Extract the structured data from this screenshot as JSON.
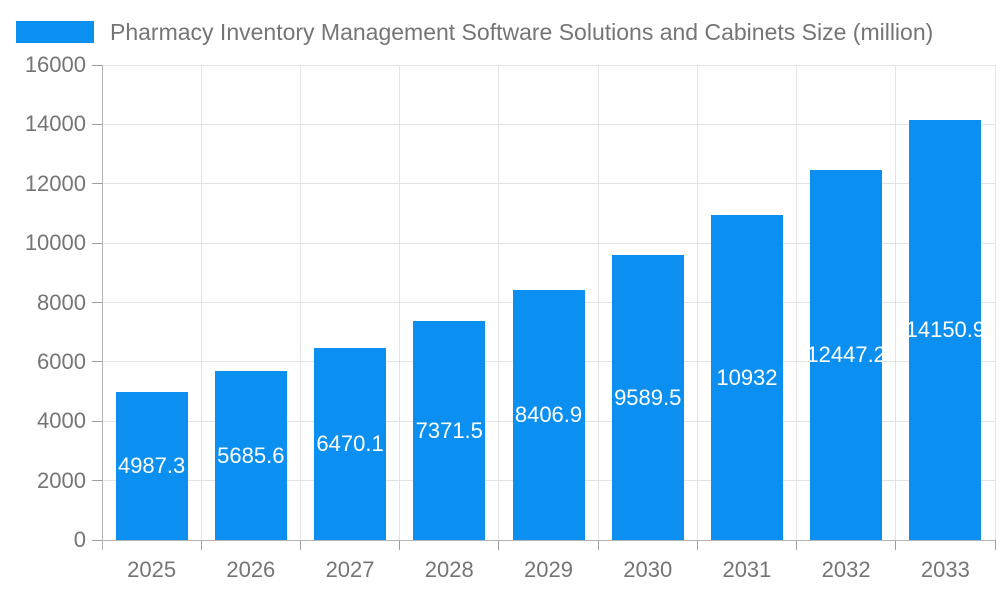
{
  "chart_data": {
    "type": "bar",
    "title": "Pharmacy Inventory Management Software Solutions and Cabinets Size (million)",
    "categories": [
      "2025",
      "2026",
      "2027",
      "2028",
      "2029",
      "2030",
      "2031",
      "2032",
      "2033"
    ],
    "values": [
      4987.3,
      5685.6,
      6470.1,
      7371.5,
      8406.9,
      9589.5,
      10932,
      12447.2,
      14150.9
    ],
    "bar_labels": [
      "4987.3",
      "5685.6",
      "6470.1",
      "7371.5",
      "8406.9",
      "9589.5",
      "10932",
      "12447.2",
      "14150.9"
    ],
    "xlabel": "",
    "ylabel": "",
    "ylim": [
      0,
      16000
    ],
    "yticks": [
      0,
      2000,
      4000,
      6000,
      8000,
      10000,
      12000,
      14000,
      16000
    ],
    "grid": true,
    "legend_position": "top-left",
    "colors": {
      "bar": "#0b90f1",
      "bar_label": "#ffffff",
      "axis_text": "#757575",
      "title_text": "#757575",
      "gridline": "#e3e3e3",
      "axis_line": "#b3b3b3",
      "tick": "#9e9e9e",
      "background": "#ffffff"
    }
  }
}
